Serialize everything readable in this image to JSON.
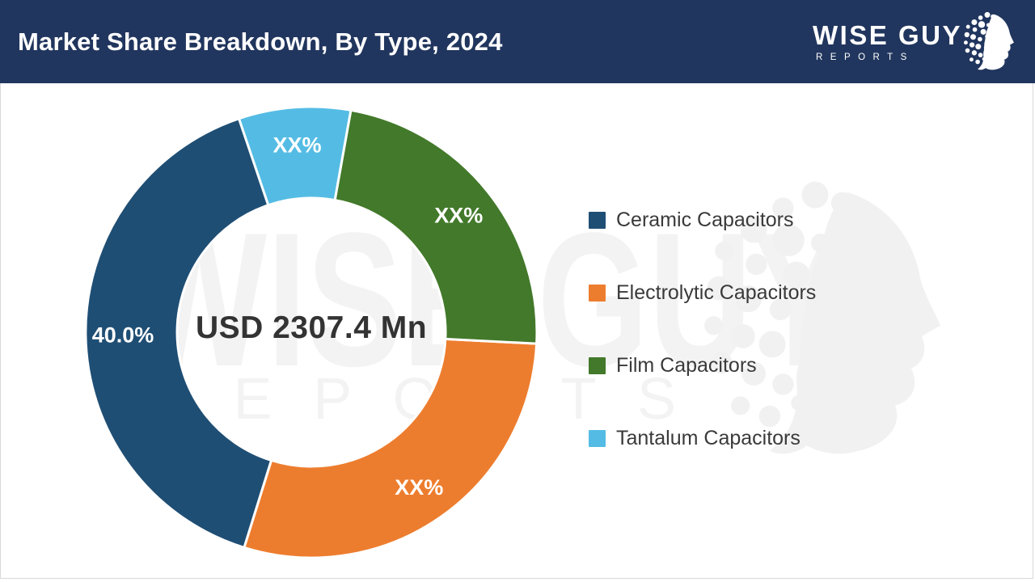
{
  "header": {
    "title": "Market Share Breakdown, By Type, 2024",
    "logo": {
      "wordmark": "WISE GUY",
      "subtext": "REPORTS"
    }
  },
  "chart_data": {
    "type": "pie",
    "subtype": "donut",
    "title": "Market Share Breakdown, By Type, 2024",
    "center_label": "USD 2307.4 Mn",
    "legend_position": "right",
    "direction": "counterclockwise",
    "start_angle_deg": 108.7,
    "donut_hole_ratio": 0.59,
    "categories": [
      "Ceramic Capacitors",
      "Electrolytic Capacitors",
      "Film Capacitors",
      "Tantalum Capacitors"
    ],
    "values": [
      40.0,
      29.0,
      23.0,
      8.0
    ],
    "values_note": "Only the Ceramic segment is labeled (40.0%); other segment labels are masked as XX% — their values are estimated from arc angles.",
    "series": [
      {
        "name": "Ceramic Capacitors",
        "value_pct": 40.0,
        "displayed_label": "40.0%",
        "color": "#1f4e74"
      },
      {
        "name": "Electrolytic Capacitors",
        "value_pct": 29.0,
        "displayed_label": "XX%",
        "color": "#ed7d2e"
      },
      {
        "name": "Film Capacitors",
        "value_pct": 23.0,
        "displayed_label": "XX%",
        "color": "#42792a"
      },
      {
        "name": "Tantalum Capacitors",
        "value_pct": 8.0,
        "displayed_label": "XX%",
        "color": "#54bce4"
      }
    ]
  },
  "watermark": {
    "wordmark": "WISE GUY",
    "subtext": "REPORTS"
  },
  "colors": {
    "header_bg": "#21365e",
    "title_text": "#ffffff",
    "center_text": "#333333",
    "legend_text": "#3a3a3a",
    "segment_label_text": "#ffffff",
    "segment_gap": "#ffffff",
    "frame_border": "#d8d8d8",
    "watermark": "#f3f3f3"
  }
}
